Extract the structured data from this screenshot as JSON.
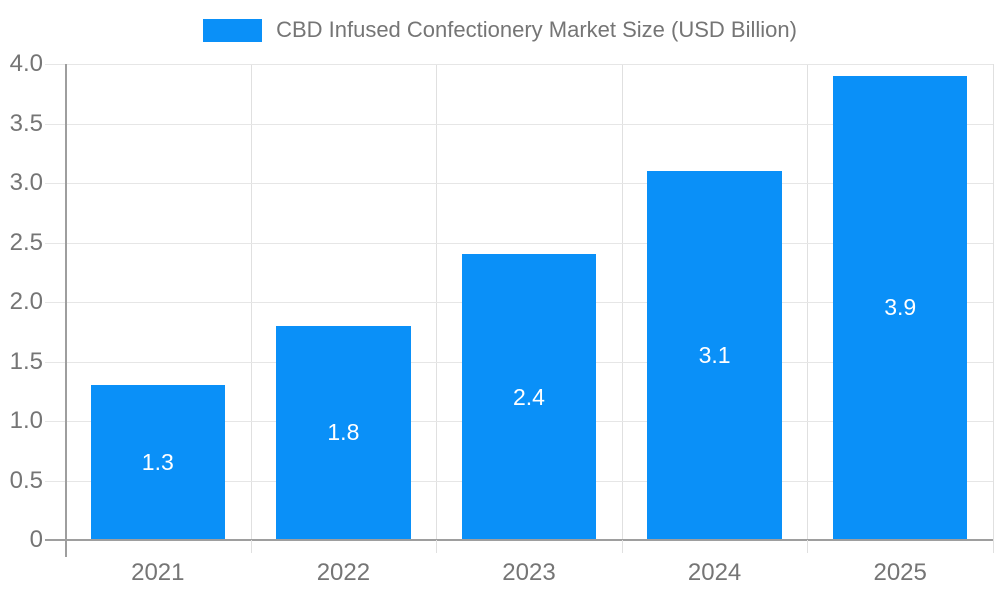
{
  "legend": {
    "label": "CBD Infused Confectionery Market Size (USD Billion)"
  },
  "chart_data": {
    "type": "bar",
    "title": "CBD Infused Confectionery Market Size (USD Billion)",
    "categories": [
      "2021",
      "2022",
      "2023",
      "2024",
      "2025"
    ],
    "values": [
      1.3,
      1.8,
      2.4,
      3.1,
      3.9
    ],
    "bar_labels": [
      "1.3",
      "1.8",
      "2.4",
      "3.1",
      "3.9"
    ],
    "xlabel": "",
    "ylabel": "",
    "ylim": [
      0,
      4
    ],
    "ytick_step": 0.5,
    "yticks": [
      0,
      0.5,
      1,
      1.5,
      2,
      2.5,
      3,
      3.5,
      4
    ],
    "ytick_labels": [
      "0",
      "0.5",
      "1.0",
      "1.5",
      "2.0",
      "2.5",
      "3.0",
      "3.5",
      "4.0"
    ],
    "grid": true,
    "legend_position": "top-center",
    "bar_label_position": "center",
    "colors": {
      "bar": "#0a90f8",
      "bar_label": "#ffffff",
      "axis_text": "#757575",
      "legend_text": "#757575",
      "hgridline": "#e6e6e6",
      "vgridline": "#e0e0e0",
      "axis_line": "#9e9e9e",
      "background": "#ffffff"
    }
  }
}
